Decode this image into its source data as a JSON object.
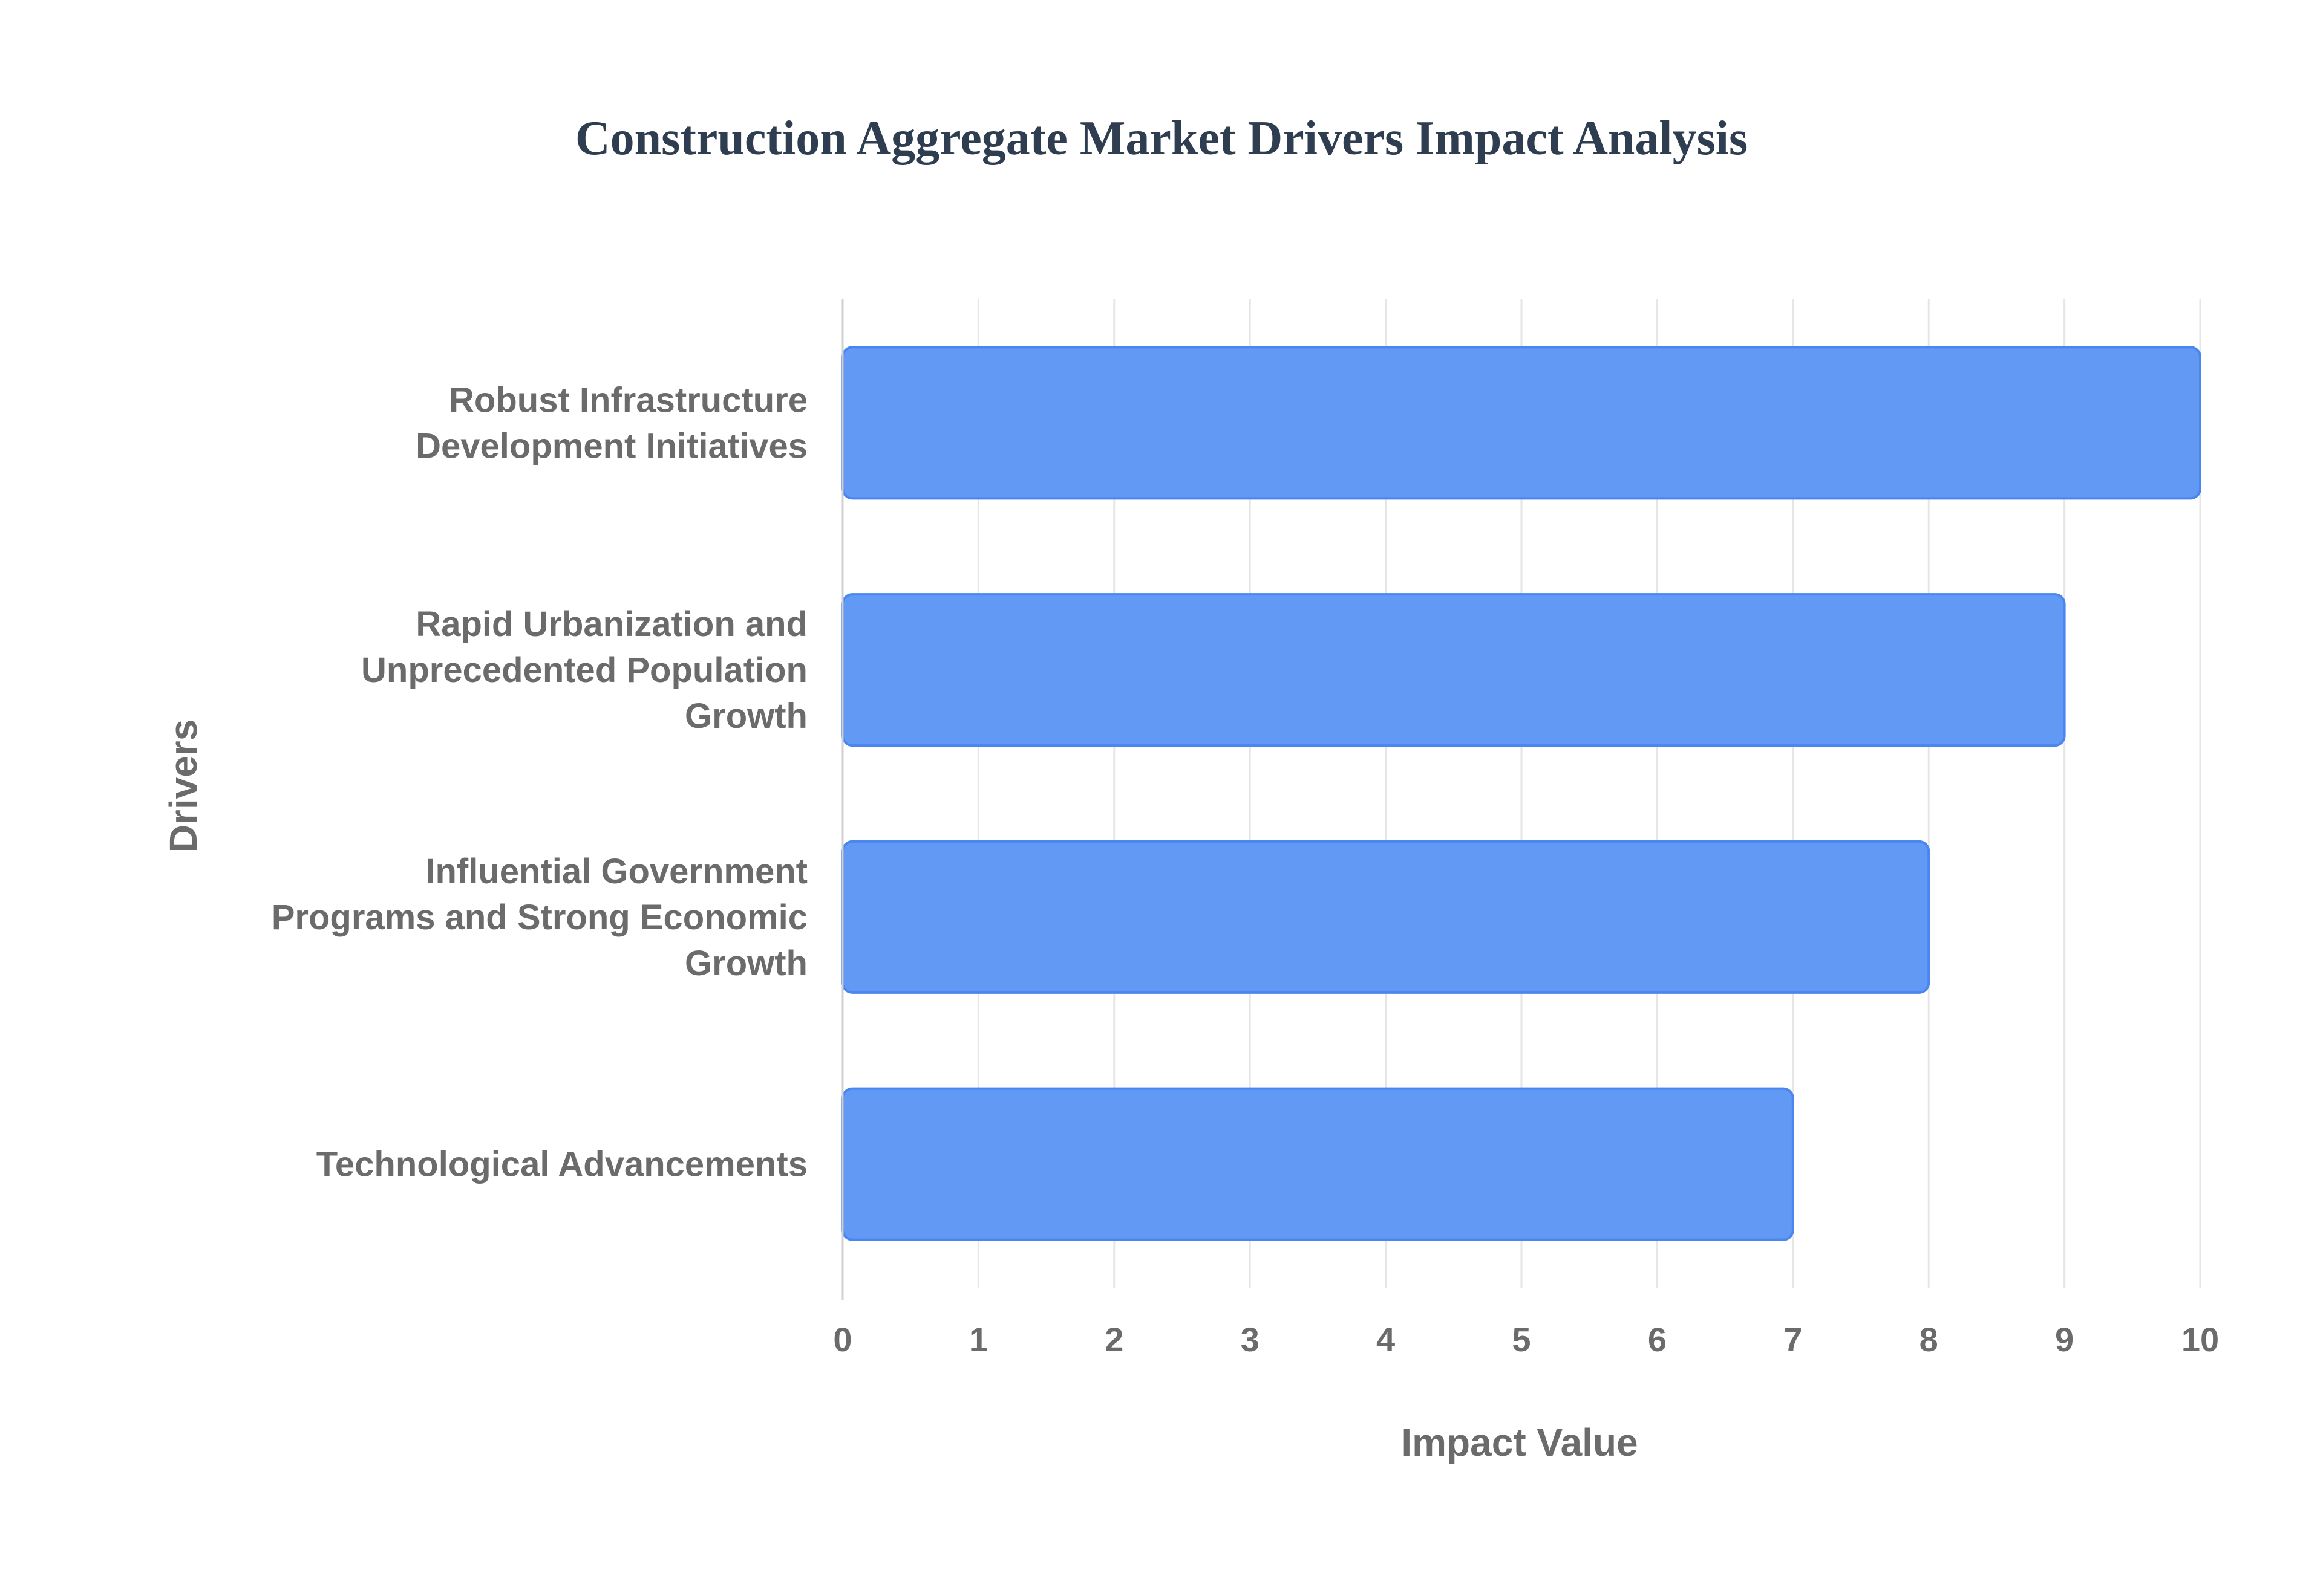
{
  "chart_data": {
    "type": "bar",
    "orientation": "horizontal",
    "title": "Construction Aggregate Market Drivers Impact Analysis",
    "xlabel": "Impact Value",
    "ylabel": "Drivers",
    "xlim": [
      0,
      10
    ],
    "x_ticks": [
      "0",
      "1",
      "2",
      "3",
      "4",
      "5",
      "6",
      "7",
      "8",
      "9",
      "10"
    ],
    "grid": true,
    "legend": "none",
    "categories": [
      [
        "Robust Infrastructure",
        "Development Initiatives"
      ],
      [
        "Rapid Urbanization and",
        "Unprecedented Population",
        "Growth"
      ],
      [
        "Influential Government",
        "Programs and Strong Economic",
        "Growth"
      ],
      [
        "Technological Advancements"
      ]
    ],
    "values": [
      10,
      9,
      8,
      7
    ],
    "bar_color": "#6199f5",
    "bar_border_color": "#4a86f0"
  }
}
